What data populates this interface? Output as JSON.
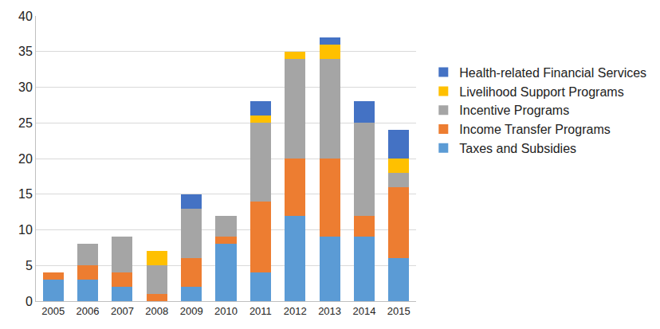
{
  "chart_data": {
    "type": "bar",
    "stacked": true,
    "grid": true,
    "legend": "right",
    "categories": [
      "2005",
      "2006",
      "2007",
      "2008",
      "2009",
      "2010",
      "2011",
      "2012",
      "2013",
      "2014",
      "2015"
    ],
    "series": [
      {
        "name": "Taxes and Subsidies",
        "color": "#5B9BD5",
        "values": [
          3,
          3,
          2,
          0,
          2,
          8,
          4,
          12,
          9,
          9,
          6
        ]
      },
      {
        "name": "Income Transfer Programs",
        "color": "#ED7D31",
        "values": [
          1,
          2,
          2,
          1,
          4,
          1,
          10,
          8,
          11,
          3,
          10
        ]
      },
      {
        "name": "Incentive Programs",
        "color": "#A5A5A5",
        "values": [
          0,
          3,
          5,
          4,
          7,
          3,
          11,
          14,
          14,
          13,
          2
        ]
      },
      {
        "name": "Livelihood Support Programs",
        "color": "#FFC000",
        "values": [
          0,
          0,
          0,
          2,
          0,
          0,
          1,
          1,
          2,
          0,
          2
        ]
      },
      {
        "name": "Health-related Financial Services",
        "color": "#4472C4",
        "values": [
          0,
          0,
          0,
          0,
          2,
          0,
          2,
          0,
          1,
          3,
          4
        ]
      }
    ],
    "ylim": [
      0,
      40
    ],
    "yticks": [
      0,
      5,
      10,
      15,
      20,
      25,
      30,
      35,
      40
    ]
  }
}
